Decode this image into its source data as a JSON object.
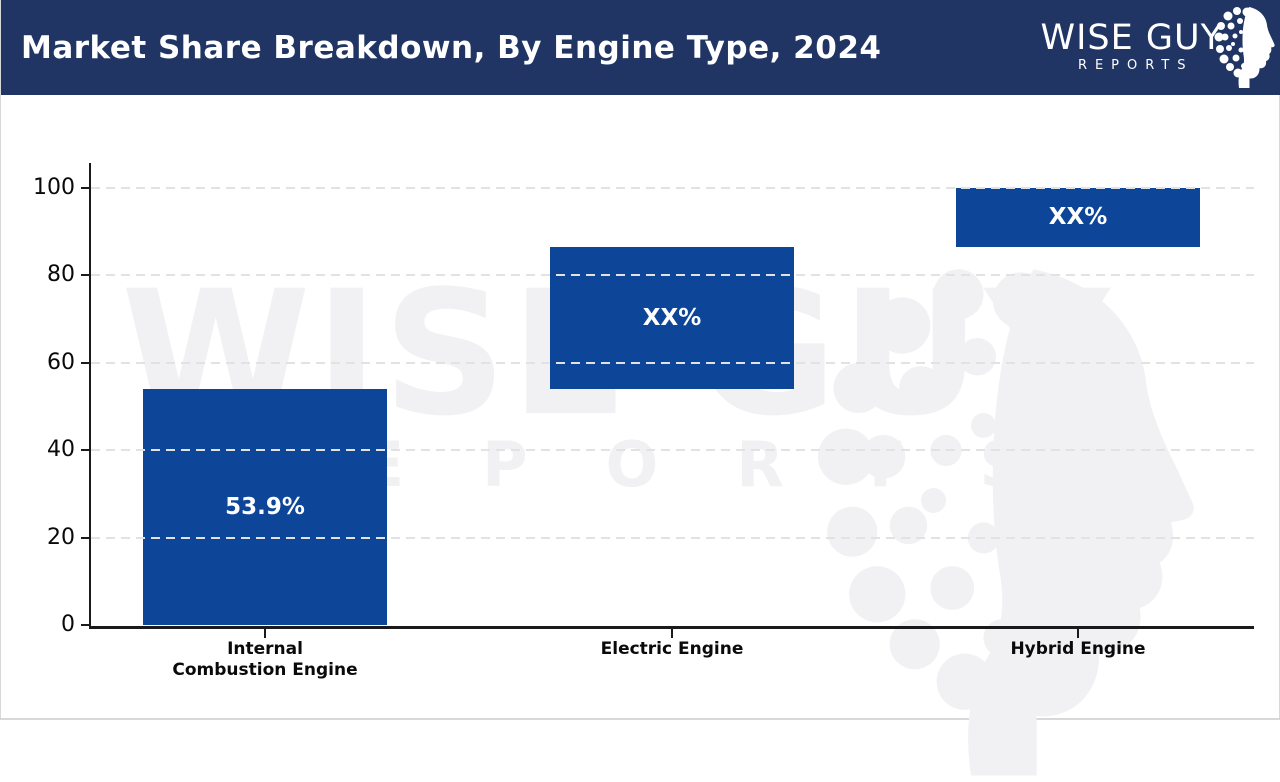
{
  "header": {
    "title": "Market Share Breakdown, By Engine Type, 2024",
    "logo": {
      "line1": "WISE GUY",
      "line2": "REPORTS"
    }
  },
  "watermark": {
    "line1": "WISE GUY",
    "line2": "REPORTS"
  },
  "colors": {
    "header_bg": "#203564",
    "bar": "#0d4599",
    "axis": "#1a1a1a",
    "grid": "#e2e2e2",
    "watermark": "#f1f1f4",
    "bar_label_text": "#ffffff",
    "tick_text": "#0a0a0a"
  },
  "chart_data": {
    "type": "bar",
    "subtype": "stacked-waterfall",
    "title": "Market Share Breakdown, By Engine Type, 2024",
    "categories": [
      [
        "Internal",
        "Combustion Engine"
      ],
      [
        "Electric Engine"
      ],
      [
        "Hybrid Engine"
      ]
    ],
    "segments": [
      {
        "category": "Internal Combustion Engine",
        "start": 0,
        "end": 53.9,
        "label": "53.9%"
      },
      {
        "category": "Electric Engine",
        "start": 54,
        "end": 86.3,
        "label": "XX%"
      },
      {
        "category": "Hybrid Engine",
        "start": 86.3,
        "end": 100,
        "label": "XX%"
      }
    ],
    "yticks": [
      0,
      20,
      40,
      60,
      80,
      100
    ],
    "ylim": [
      0,
      105
    ],
    "grid": "horizontal-dashed",
    "legend": "none"
  }
}
